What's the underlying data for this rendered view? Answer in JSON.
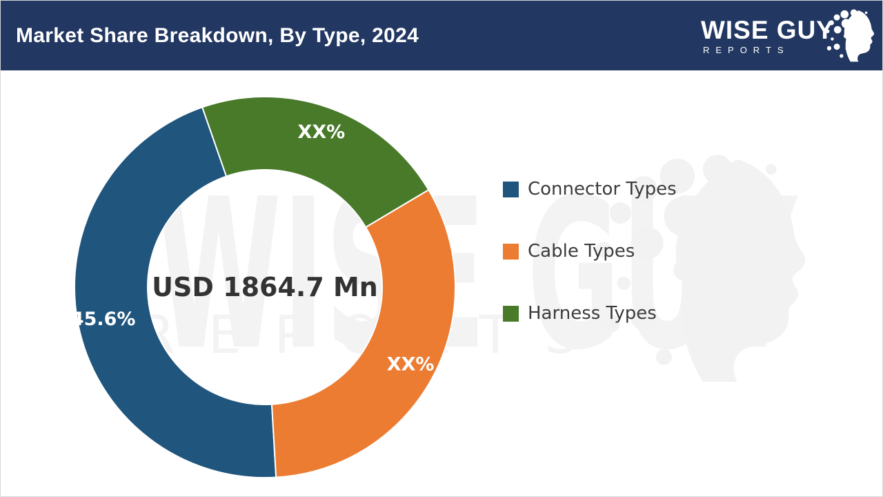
{
  "header": {
    "title": "Market Share Breakdown, By Type, 2024",
    "bg_color": "#223862",
    "logo": {
      "line1": "WISE GUY",
      "line2": "REPORTS"
    }
  },
  "watermark": {
    "line1": "WISE GUY",
    "line2": "REPORTS",
    "color": "#F3F3F3"
  },
  "chart_data": {
    "type": "pie",
    "subtype": "donut",
    "title": "Market Share Breakdown, By Type, 2024",
    "center_label": "USD 1864.7 Mn",
    "start_angle_deg": 109.2,
    "direction": "counterclockwise",
    "inner_radius_ratio": 0.61,
    "legend_position": "right",
    "series": [
      {
        "name": "Connector Types",
        "value_pct": 45.6,
        "label": "45.6%",
        "color": "#20557D"
      },
      {
        "name": "Cable Types",
        "value_pct": 32.6,
        "label": "XX%",
        "color": "#EC7C31"
      },
      {
        "name": "Harness Types",
        "value_pct": 21.8,
        "label": "XX%",
        "color": "#487A2A"
      }
    ]
  }
}
